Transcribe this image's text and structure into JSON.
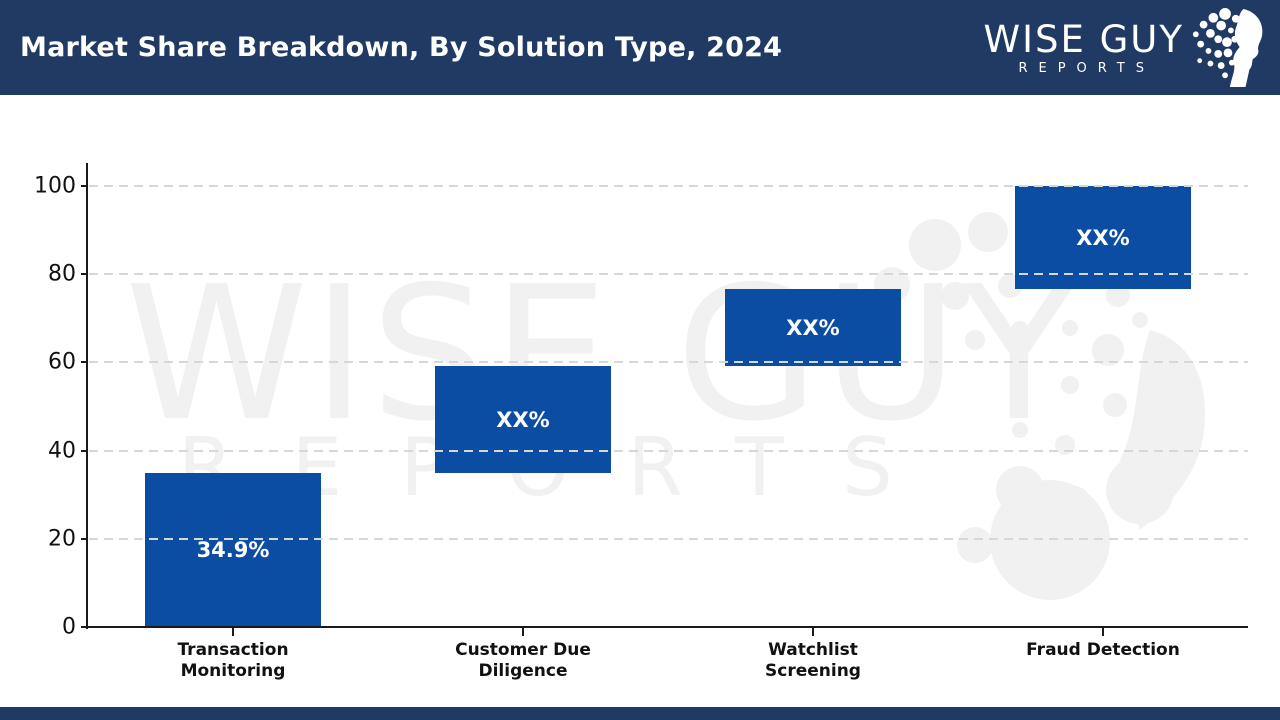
{
  "header": {
    "title": "Market Share Breakdown, By Solution Type, 2024",
    "bg_color": "#203a64",
    "logo": {
      "line1": "WISE GUY",
      "line2": "REPORTS"
    }
  },
  "watermark": {
    "line1": "WISE GUY",
    "line2": "REPORTS"
  },
  "footer": {
    "bg_color": "#203a64"
  },
  "chart_data": {
    "type": "bar",
    "subtype": "waterfall",
    "title": "Market Share Breakdown, By Solution Type, 2024",
    "categories": [
      "Transaction Monitoring",
      "Customer Due Diligence",
      "Watchlist Screening",
      "Fraud Detection"
    ],
    "segments": [
      {
        "category": "Transaction Monitoring",
        "start": 0,
        "end": 34.9,
        "label": "34.9%"
      },
      {
        "category": "Customer Due Diligence",
        "start": 34.9,
        "end": 59.2,
        "label": "XX%"
      },
      {
        "category": "Watchlist Screening",
        "start": 59.2,
        "end": 76.6,
        "label": "XX%"
      },
      {
        "category": "Fraud Detection",
        "start": 76.6,
        "end": 100,
        "label": "XX%"
      }
    ],
    "yticks": [
      0,
      20,
      40,
      60,
      80,
      100
    ],
    "ylim": [
      0,
      105
    ],
    "xlabel": "",
    "ylabel": "",
    "bar_color": "#0b4da2",
    "bar_label_color": "#ffffff",
    "grid": {
      "show": true,
      "style": "dashed",
      "color": "#d7d7d7",
      "drawn_over_bars": true
    },
    "legend_position": "none"
  }
}
